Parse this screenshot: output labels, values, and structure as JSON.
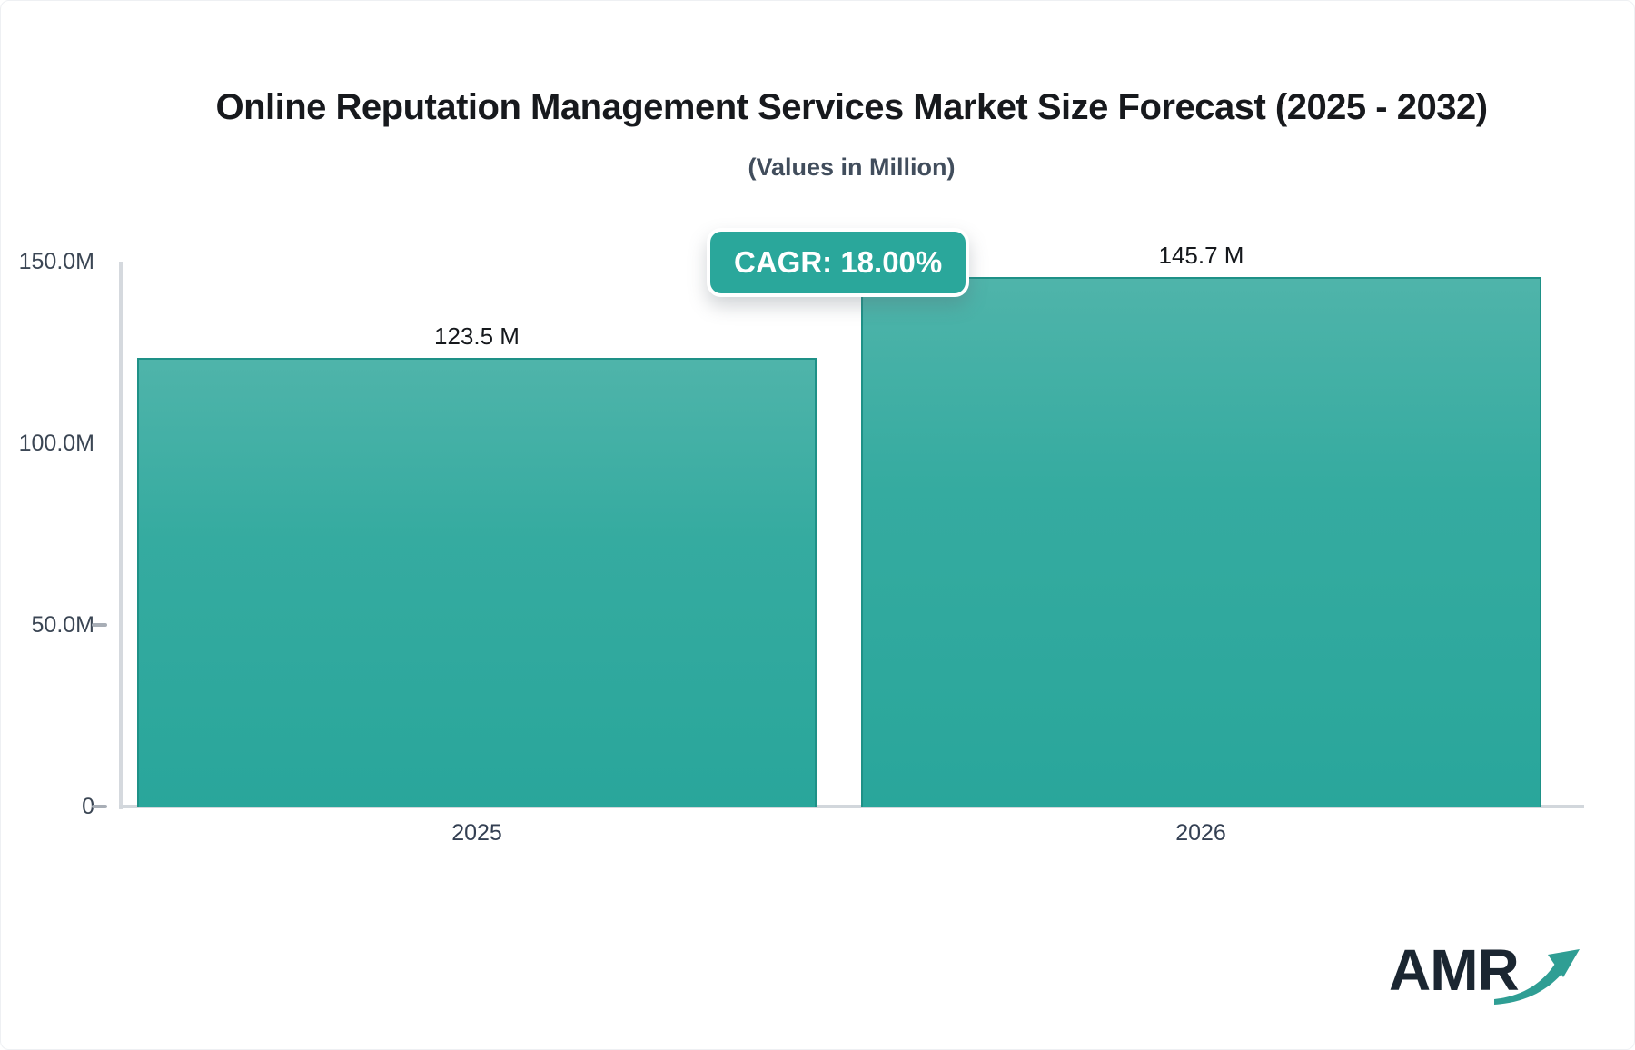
{
  "title": "Online Reputation Management Services Market Size Forecast (2025 - 2032)",
  "subtitle": "(Values in Million)",
  "badge": {
    "label": "CAGR: 18.00%"
  },
  "logo": {
    "text": "AMR"
  },
  "chart_data": {
    "type": "bar",
    "title": "Online Reputation Management Services Market Size Forecast (2025 - 2032)",
    "subtitle": "(Values in Million)",
    "categories": [
      "2025",
      "2026"
    ],
    "values": [
      123.5,
      145.7
    ],
    "value_labels": [
      "123.5 M",
      "145.7 M"
    ],
    "unit": "Million",
    "cagr_percent": 18.0,
    "xlabel": "",
    "ylabel": "",
    "ylim": [
      0,
      150
    ],
    "yticks": [
      {
        "value": 0,
        "label": "0",
        "tick": true
      },
      {
        "value": 50,
        "label": "50.0M",
        "tick": true
      },
      {
        "value": 100,
        "label": "100.0M",
        "tick": false
      },
      {
        "value": 150,
        "label": "150.0M",
        "tick": false
      }
    ],
    "grid": false,
    "legend": "none"
  },
  "colors": {
    "bar_gradient_top": "#4FB4AA",
    "bar_gradient_bottom": "#29A69B",
    "bar_border": "#1E9187",
    "accent_badge": "#2AA79B",
    "axis_line": "#D5D9DE",
    "tick_dash": "#A8AEB6",
    "axis_label": "#3B4654",
    "value_label": "#15181C",
    "title_text": "#17191D",
    "subtitle_text": "#414D5C",
    "logo_text": "#1B2631",
    "logo_arrow": "#2F9E94"
  }
}
